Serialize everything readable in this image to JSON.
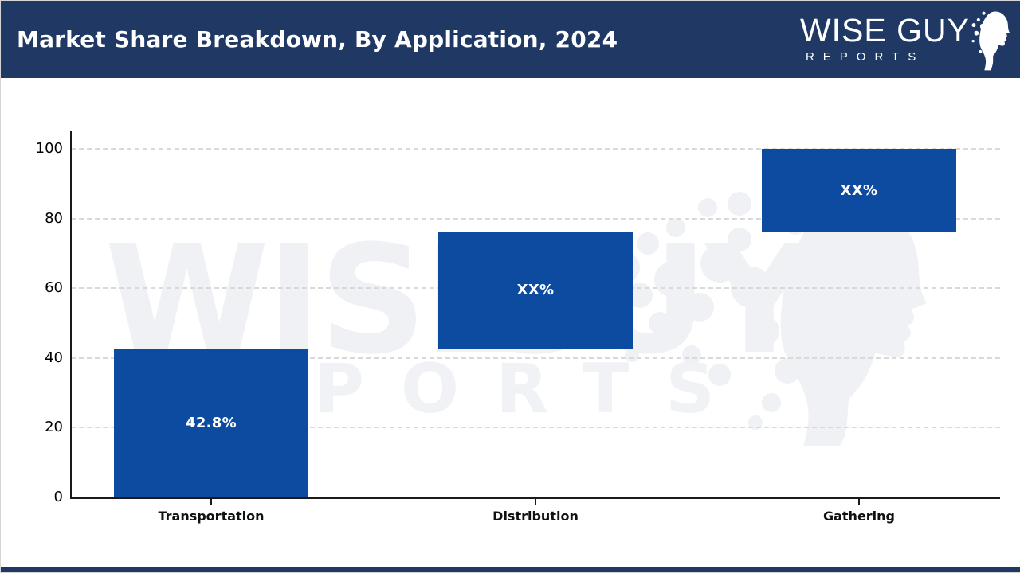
{
  "header": {
    "title": "Market Share Breakdown, By Application, 2024",
    "logo": {
      "line1": "WISE GUY",
      "line2": "REPORTS"
    }
  },
  "watermark": {
    "word1": "WISE",
    "word2": "GUY",
    "line2": "REPORTS"
  },
  "colors": {
    "header_navy": "#1f3864",
    "bar_blue": "#0c4ba0",
    "grid_gray": "#d9d9d9",
    "watermark_gray": "#eff1f4",
    "axis_black": "#1a1a1a"
  },
  "chart_data": {
    "type": "bar",
    "subtype": "waterfall-stacked",
    "title": "Market Share Breakdown, By Application, 2024",
    "categories": [
      "Transportation",
      "Distribution",
      "Gathering"
    ],
    "segments": [
      {
        "category": "Transportation",
        "start": 0,
        "end": 42.8,
        "label": "42.8%"
      },
      {
        "category": "Distribution",
        "start": 42.8,
        "end": 76.2,
        "label": "XX%"
      },
      {
        "category": "Gathering",
        "start": 76.2,
        "end": 100,
        "label": "XX%"
      }
    ],
    "xlabel": "",
    "ylabel": "",
    "ylim": [
      0,
      100
    ],
    "yticks": [
      0,
      20,
      40,
      60,
      80,
      100
    ],
    "grid": "dashed-horizontal",
    "legend": "none"
  }
}
